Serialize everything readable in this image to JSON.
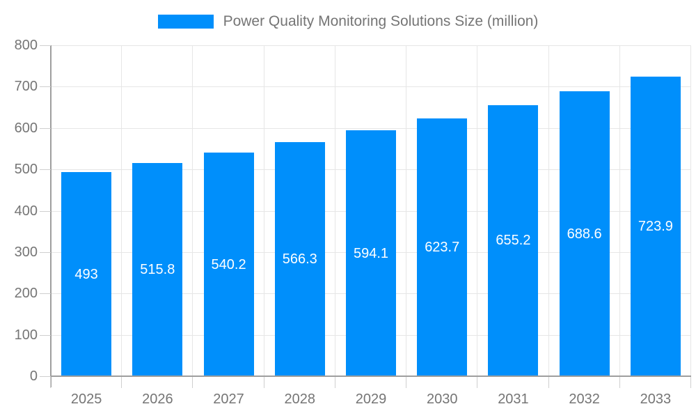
{
  "chart_data": {
    "type": "bar",
    "title": "Power Quality Monitoring Solutions Size (million)",
    "xlabel": "",
    "ylabel": "",
    "categories": [
      "2025",
      "2026",
      "2027",
      "2028",
      "2029",
      "2030",
      "2031",
      "2032",
      "2033"
    ],
    "series": [
      {
        "name": "Power Quality Monitoring Solutions Size (million)",
        "values": [
          493,
          515.8,
          540.2,
          566.3,
          594.1,
          623.7,
          655.2,
          688.6,
          723.9
        ],
        "value_labels": [
          "493",
          "515.8",
          "540.2",
          "566.3",
          "594.1",
          "623.7",
          "655.2",
          "688.6",
          "723.9"
        ]
      }
    ],
    "ylim": [
      0,
      800
    ],
    "y_ticks": [
      0,
      100,
      200,
      300,
      400,
      500,
      600,
      700,
      800
    ],
    "grid": true,
    "legend_position": "top",
    "colors": {
      "bar": "#008FFB",
      "bar_value_label": "#ffffff",
      "gridline": "#e6e6e6",
      "axis_line": "#9e9e9e",
      "tick_mark": "#cfcfcf",
      "axis_label": "#757575",
      "legend_text": "#757575",
      "background": "#ffffff"
    }
  }
}
